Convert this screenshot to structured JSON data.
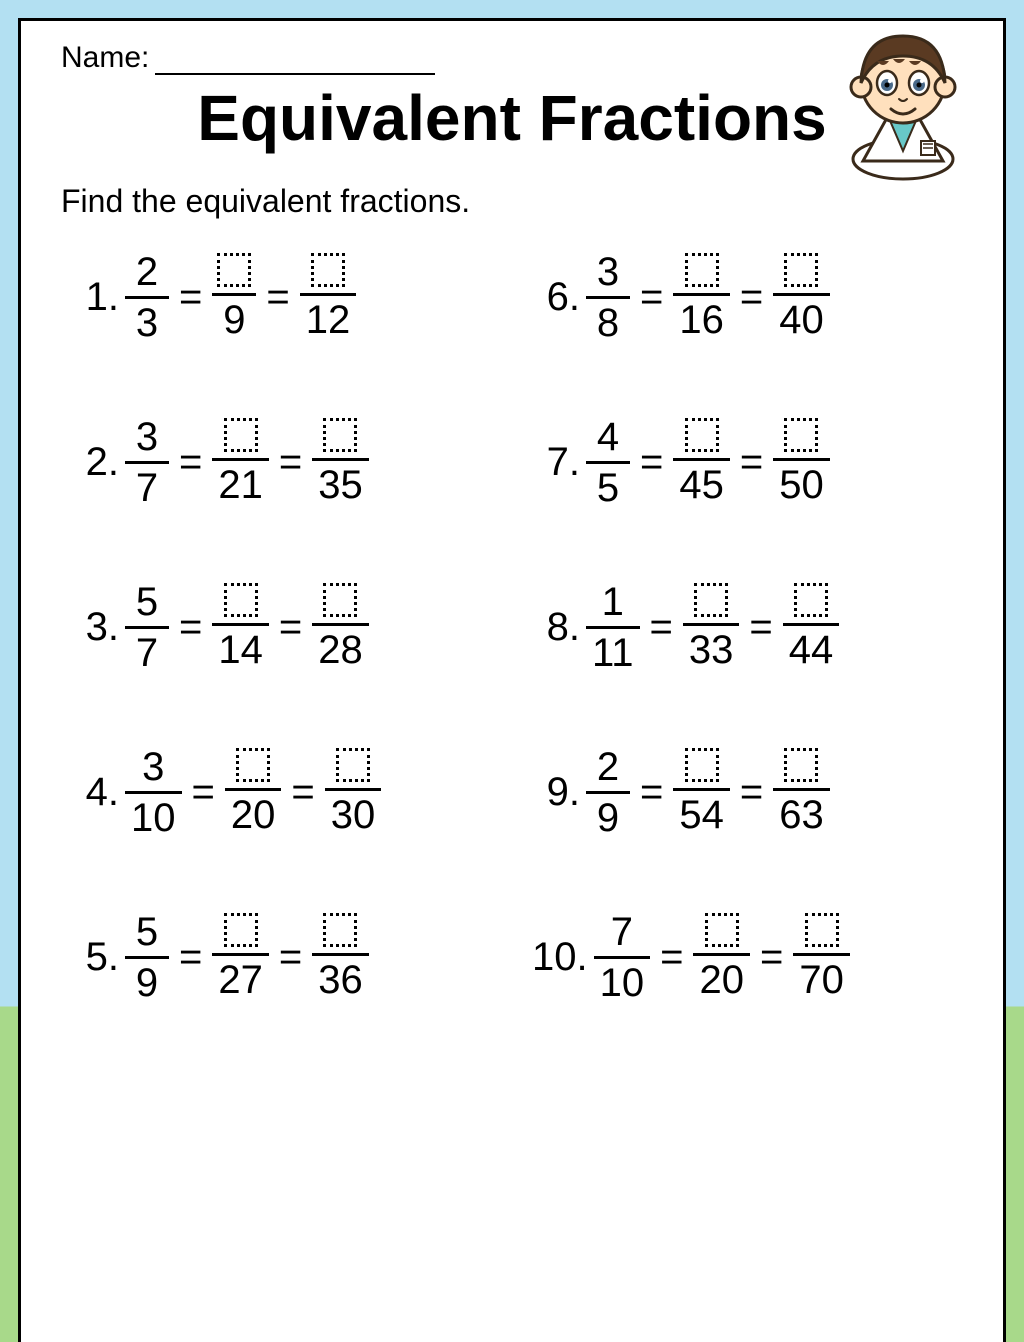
{
  "name_label": "Name:",
  "title": "Equivalent Fractions",
  "instruction": "Find the equivalent fractions.",
  "equals": "=",
  "avatar": {
    "skin": "#ffe0bd",
    "hair": "#5a3a22",
    "eye": "#4a6a8a",
    "coat": "#ffffff",
    "shirt": "#68c8c8",
    "outline": "#3a2a1a"
  },
  "problems": [
    {
      "n": "1",
      "num": "2",
      "den": "3",
      "d2": "9",
      "d3": "12"
    },
    {
      "n": "6",
      "num": "3",
      "den": "8",
      "d2": "16",
      "d3": "40"
    },
    {
      "n": "2",
      "num": "3",
      "den": "7",
      "d2": "21",
      "d3": "35"
    },
    {
      "n": "7",
      "num": "4",
      "den": "5",
      "d2": "45",
      "d3": "50"
    },
    {
      "n": "3",
      "num": "5",
      "den": "7",
      "d2": "14",
      "d3": "28"
    },
    {
      "n": "8",
      "num": "1",
      "den": "11",
      "d2": "33",
      "d3": "44"
    },
    {
      "n": "4",
      "num": "3",
      "den": "10",
      "d2": "20",
      "d3": "30"
    },
    {
      "n": "9",
      "num": "2",
      "den": "9",
      "d2": "54",
      "d3": "63"
    },
    {
      "n": "5",
      "num": "5",
      "den": "9",
      "d2": "27",
      "d3": "36"
    },
    {
      "n": "10",
      "num": "7",
      "den": "10",
      "d2": "20",
      "d3": "70"
    }
  ]
}
